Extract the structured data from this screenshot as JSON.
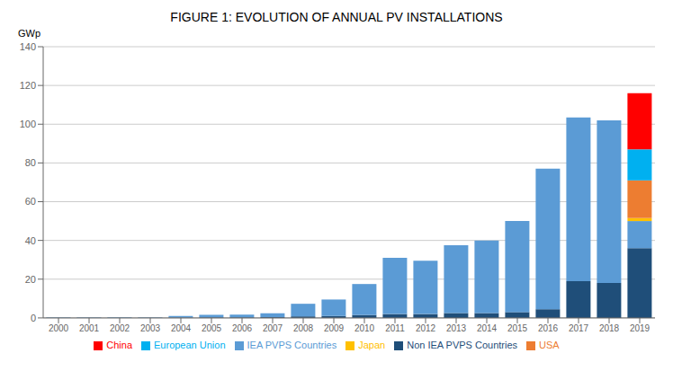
{
  "chart_data": {
    "type": "bar",
    "stacked": true,
    "title": "FIGURE 1: EVOLUTION OF ANNUAL PV INSTALLATIONS",
    "ylabel": "GWp",
    "categories": [
      "2000",
      "2001",
      "2002",
      "2003",
      "2004",
      "2005",
      "2006",
      "2007",
      "2008",
      "2009",
      "2010",
      "2011",
      "2012",
      "2013",
      "2014",
      "2015",
      "2016",
      "2017",
      "2018",
      "2019"
    ],
    "series": [
      {
        "name": "Non IEA PVPS Countries",
        "color": "#1F4E79",
        "values": [
          0.1,
          0.1,
          0.1,
          0.1,
          0.2,
          0.3,
          0.3,
          0.4,
          0.8,
          1.0,
          1.5,
          2.0,
          2.0,
          2.5,
          2.5,
          3.0,
          4.5,
          19.0,
          18.0,
          36.0
        ]
      },
      {
        "name": "IEA PVPS Countries",
        "color": "#5B9BD5",
        "values": [
          0.2,
          0.2,
          0.2,
          0.2,
          0.8,
          1.3,
          1.4,
          2.0,
          6.5,
          8.5,
          16.0,
          29.0,
          27.5,
          35.0,
          37.5,
          47.0,
          72.5,
          84.5,
          84.0,
          14.0
        ]
      },
      {
        "name": "Japan",
        "color": "#FFC000",
        "values": [
          0,
          0,
          0,
          0,
          0,
          0,
          0,
          0,
          0,
          0,
          0,
          0,
          0,
          0,
          0,
          0,
          0,
          0,
          0,
          1.5
        ]
      },
      {
        "name": "USA",
        "color": "#ED7D31",
        "values": [
          0,
          0,
          0,
          0,
          0,
          0,
          0,
          0,
          0,
          0,
          0,
          0,
          0,
          0,
          0,
          0,
          0,
          0,
          0,
          19.5
        ]
      },
      {
        "name": "European Union",
        "color": "#00B0F0",
        "values": [
          0,
          0,
          0,
          0,
          0,
          0,
          0,
          0,
          0,
          0,
          0,
          0,
          0,
          0,
          0,
          0,
          0,
          0,
          0,
          16.0
        ]
      },
      {
        "name": "China",
        "color": "#FF0000",
        "values": [
          0,
          0,
          0,
          0,
          0,
          0,
          0,
          0,
          0,
          0,
          0,
          0,
          0,
          0,
          0,
          0,
          0,
          0,
          0,
          29.0
        ]
      }
    ],
    "ylim": [
      0,
      140
    ],
    "yticks": [
      0,
      20,
      40,
      60,
      80,
      100,
      120,
      140
    ],
    "grid": true,
    "legend": "bottom"
  }
}
